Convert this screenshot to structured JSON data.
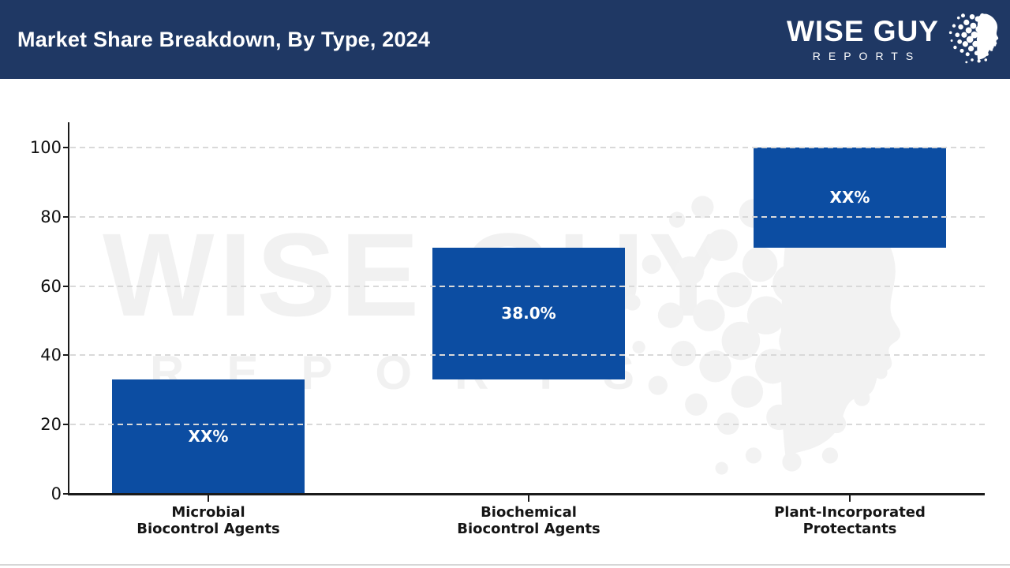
{
  "header": {
    "title": "Market Share Breakdown, By Type, 2024",
    "logo": {
      "wordmark": "WISE GUY",
      "subtext": "REPORTS"
    }
  },
  "watermark": {
    "line1": "WISE GUY",
    "line2": "REPORTS"
  },
  "chart_data": {
    "type": "bar",
    "variant": "floating_segment_waterfall",
    "title": "Market Share Breakdown, By Type, 2024",
    "categories": [
      [
        "Microbial",
        "Biocontrol Agents"
      ],
      [
        "Biochemical",
        "Biocontrol Agents"
      ],
      [
        "Plant-Incorporated",
        "Protectants"
      ]
    ],
    "series": [
      {
        "name": "Market share (%)",
        "segments": [
          {
            "from": 0,
            "to": 33,
            "label": "XX%"
          },
          {
            "from": 33,
            "to": 71,
            "label": "38.0%"
          },
          {
            "from": 71,
            "to": 100,
            "label": "XX%"
          }
        ]
      }
    ],
    "yticks": [
      0,
      20,
      40,
      60,
      80,
      100
    ],
    "ylim": [
      0,
      107
    ],
    "xlabel": "",
    "ylabel": "",
    "grid": {
      "horizontal": true,
      "style": "dashed",
      "color": "#d9d9d9"
    },
    "legend": "none",
    "colors": {
      "bar": "#0c4da2",
      "bar_label": "#ffffff",
      "axis": "#1a1a1a",
      "tick_label": "#111111",
      "header_bg": "#1f3864",
      "watermark": "#f1f1f1"
    }
  }
}
